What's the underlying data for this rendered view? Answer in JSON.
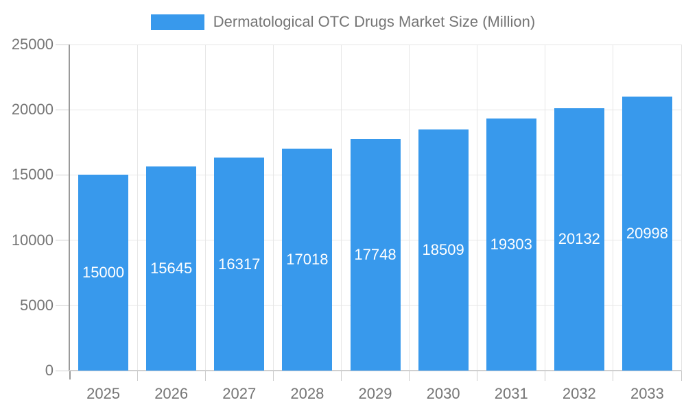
{
  "chart_data": {
    "type": "bar",
    "title": "Dermatological OTC Drugs Market Size (Million)",
    "categories": [
      "2025",
      "2026",
      "2027",
      "2028",
      "2029",
      "2030",
      "2031",
      "2032",
      "2033"
    ],
    "values": [
      15000,
      15645,
      16317,
      17018,
      17748,
      18509,
      19303,
      20132,
      20998
    ],
    "xlabel": "",
    "ylabel": "",
    "ylim": [
      0,
      25000
    ],
    "yticks": [
      0,
      5000,
      10000,
      15000,
      20000,
      25000
    ],
    "grid": true,
    "legend_position": "top-center",
    "value_label_position": "inside-center"
  },
  "colors": {
    "bar": "#3899EC",
    "value_label": "#FFFFFF",
    "text": "#757575",
    "grid": "#E6E6E6",
    "y_axis": "#9A9A9A",
    "x_axis": "#CFCFCF",
    "tick": "#CCCCCC",
    "background": "#FFFFFF"
  }
}
